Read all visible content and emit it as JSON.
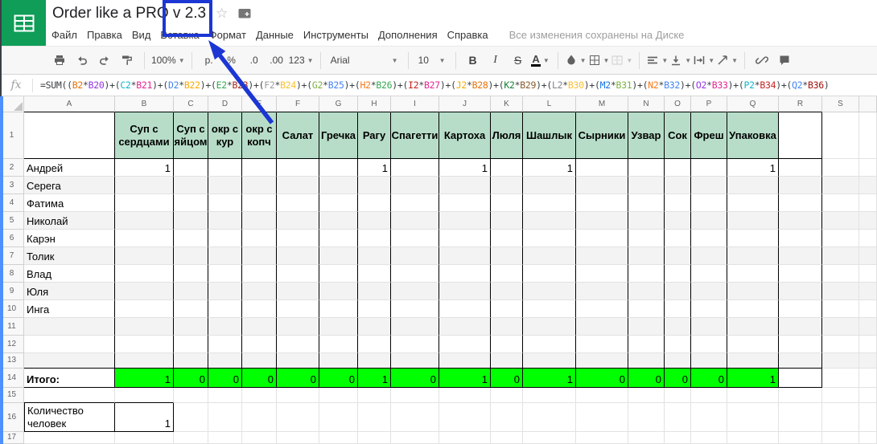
{
  "window": {
    "title": "Order like a PRO v 2.3"
  },
  "menu": {
    "items": [
      "Файл",
      "Правка",
      "Вид",
      "Вставка",
      "Формат",
      "Данные",
      "Инструменты",
      "Дополнения",
      "Справка"
    ],
    "status": "Все изменения сохранены на Диске",
    "highlighted_item": "Вставка"
  },
  "toolbar": {
    "zoom": "100%",
    "currency": "р.",
    "percent": "%",
    "decimal_decrease": ".0",
    "decimal_increase": ".00",
    "number_format": "123",
    "font": "Arial",
    "font_size": "10",
    "bold": "B",
    "italic": "I",
    "strikethrough": "S",
    "text_color": "A"
  },
  "formula_bar": {
    "fx": "fx",
    "prefix": "=SUM(",
    "terms": [
      {
        "a": "B2",
        "ac": "#e8710a",
        "b": "B20",
        "bc": "#9334e6"
      },
      {
        "a": "C2",
        "ac": "#12b5cb",
        "b": "B21",
        "bc": "#e52592"
      },
      {
        "a": "D2",
        "ac": "#4285f4",
        "b": "B22",
        "bc": "#f9ab00"
      },
      {
        "a": "E2",
        "ac": "#34a853",
        "b": "B23",
        "bc": "#a52714"
      },
      {
        "a": "F2",
        "ac": "#9e9e9e",
        "b": "B24",
        "bc": "#fbc02d"
      },
      {
        "a": "G2",
        "ac": "#7cb342",
        "b": "B25",
        "bc": "#4285f4"
      },
      {
        "a": "H2",
        "ac": "#fa7b17",
        "b": "B26",
        "bc": "#34a853"
      },
      {
        "a": "I2",
        "ac": "#c5221f",
        "b": "B27",
        "bc": "#e52592"
      },
      {
        "a": "J2",
        "ac": "#f9ab00",
        "b": "B28",
        "bc": "#e8710a"
      },
      {
        "a": "K2",
        "ac": "#188038",
        "b": "B29",
        "bc": "#8a5a2a"
      },
      {
        "a": "L2",
        "ac": "#80868b",
        "b": "B30",
        "bc": "#fbc02d"
      },
      {
        "a": "M2",
        "ac": "#1a73e8",
        "b": "B31",
        "bc": "#7cb342"
      },
      {
        "a": "N2",
        "ac": "#fa7b17",
        "b": "B32",
        "bc": "#4285f4"
      },
      {
        "a": "O2",
        "ac": "#9334e6",
        "b": "B33",
        "bc": "#e52592"
      },
      {
        "a": "P2",
        "ac": "#12b5cb",
        "b": "B34",
        "bc": "#c5221f"
      },
      {
        "a": "Q2",
        "ac": "#4285f4",
        "b": "B36",
        "bc": "#a50e0e"
      }
    ]
  },
  "grid": {
    "column_letters": [
      "A",
      "B",
      "C",
      "D",
      "E",
      "F",
      "G",
      "H",
      "I",
      "J",
      "K",
      "L",
      "M",
      "N",
      "O",
      "P",
      "Q",
      "R",
      "S"
    ],
    "item_headers": {
      "B": "Суп с сердцами",
      "C": "Суп с яйцом",
      "D": "окр с кур",
      "E": "окр с копч",
      "F": "Салат",
      "G": "Гречка",
      "H": "Рагу",
      "I": "Спагетти",
      "J": "Картоха",
      "K": "Люля",
      "L": "Шашлык",
      "M": "Сырники",
      "N": "Узвар",
      "O": "Сок",
      "P": "Фреш",
      "Q": "Упаковка"
    },
    "names": [
      "Андрей",
      "Серега",
      "Фатима",
      "Николай",
      "Карэн",
      "Толик",
      "Влад",
      "Юля",
      "Инга"
    ],
    "row2_values": {
      "B": "1",
      "H": "1",
      "J": "1",
      "L": "1",
      "Q": "1"
    },
    "totals": {
      "label": "Итого:",
      "values": {
        "B": "1",
        "C": "0",
        "D": "0",
        "E": "0",
        "F": "0",
        "G": "0",
        "H": "1",
        "I": "0",
        "J": "1",
        "K": "0",
        "L": "1",
        "M": "0",
        "N": "0",
        "O": "0",
        "P": "0",
        "Q": "1"
      }
    },
    "people_count": {
      "label": "Количество человек",
      "value": "1"
    },
    "visible_rows": 17
  },
  "colors": {
    "header_green": "#b7ddc8",
    "total_green": "#00ff00",
    "band_gray": "#f3f3f3",
    "annotation_blue": "#1c36d4",
    "logo_green": "#0f9d58",
    "selection_strip_blue": "#4d90fe"
  }
}
